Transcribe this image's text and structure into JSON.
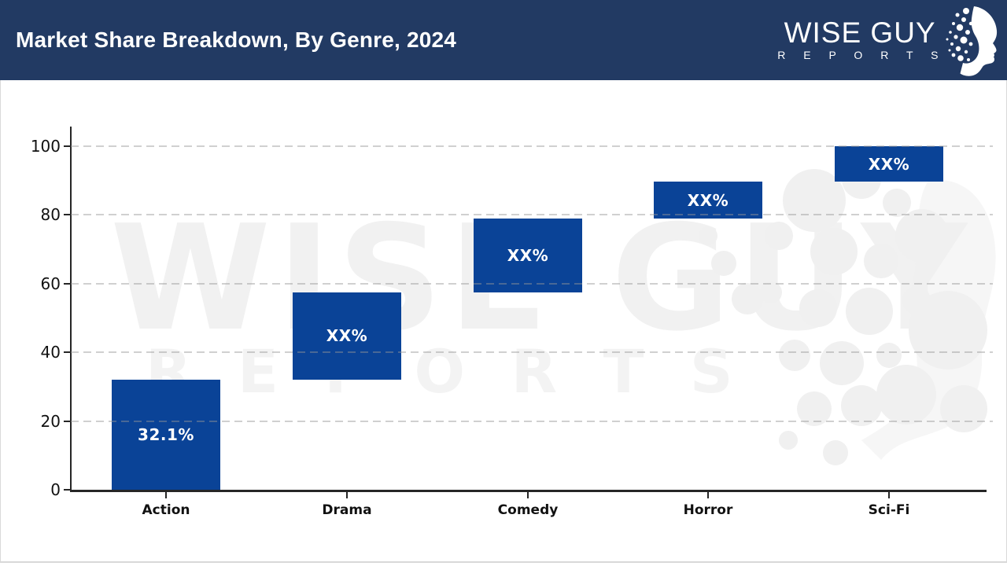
{
  "header": {
    "title": "Market Share Breakdown, By Genre, 2024",
    "logo": {
      "line1": "WISE GUY",
      "line2": "R E P O R T S"
    }
  },
  "watermark": {
    "line1": "WISE GUY",
    "line2": "R E P O R T S"
  },
  "chart_data": {
    "type": "bar",
    "subtype": "waterfall",
    "title": "Market Share Breakdown, By Genre, 2024",
    "categories": [
      "Action",
      "Drama",
      "Comedy",
      "Horror",
      "Sci-Fi"
    ],
    "segments": [
      {
        "category": "Action",
        "start": 0,
        "end": 32.1,
        "increment": 32.1,
        "label": "32.1%"
      },
      {
        "category": "Drama",
        "start": 32.1,
        "end": 57.5,
        "increment": 25.4,
        "label": "XX%"
      },
      {
        "category": "Comedy",
        "start": 57.5,
        "end": 79.0,
        "increment": 21.5,
        "label": "XX%"
      },
      {
        "category": "Horror",
        "start": 79.0,
        "end": 89.6,
        "increment": 10.6,
        "label": "XX%"
      },
      {
        "category": "Sci-Fi",
        "start": 89.6,
        "end": 100.0,
        "increment": 10.4,
        "label": "XX%"
      }
    ],
    "yticks": [
      0,
      20,
      40,
      60,
      80,
      100
    ],
    "ylim": [
      0,
      105
    ],
    "xlabel": "",
    "ylabel": "",
    "grid": "horizontal-dashed",
    "legend": "none",
    "bar_color": "#0a4397",
    "label_color": "#ffffff"
  },
  "colors": {
    "header_bg": "#223a63",
    "bar": "#0a4397",
    "axis": "#262626",
    "grid": "#bdbdbd",
    "watermark": "#f1f1f1",
    "frame": "#d9d9d9"
  }
}
